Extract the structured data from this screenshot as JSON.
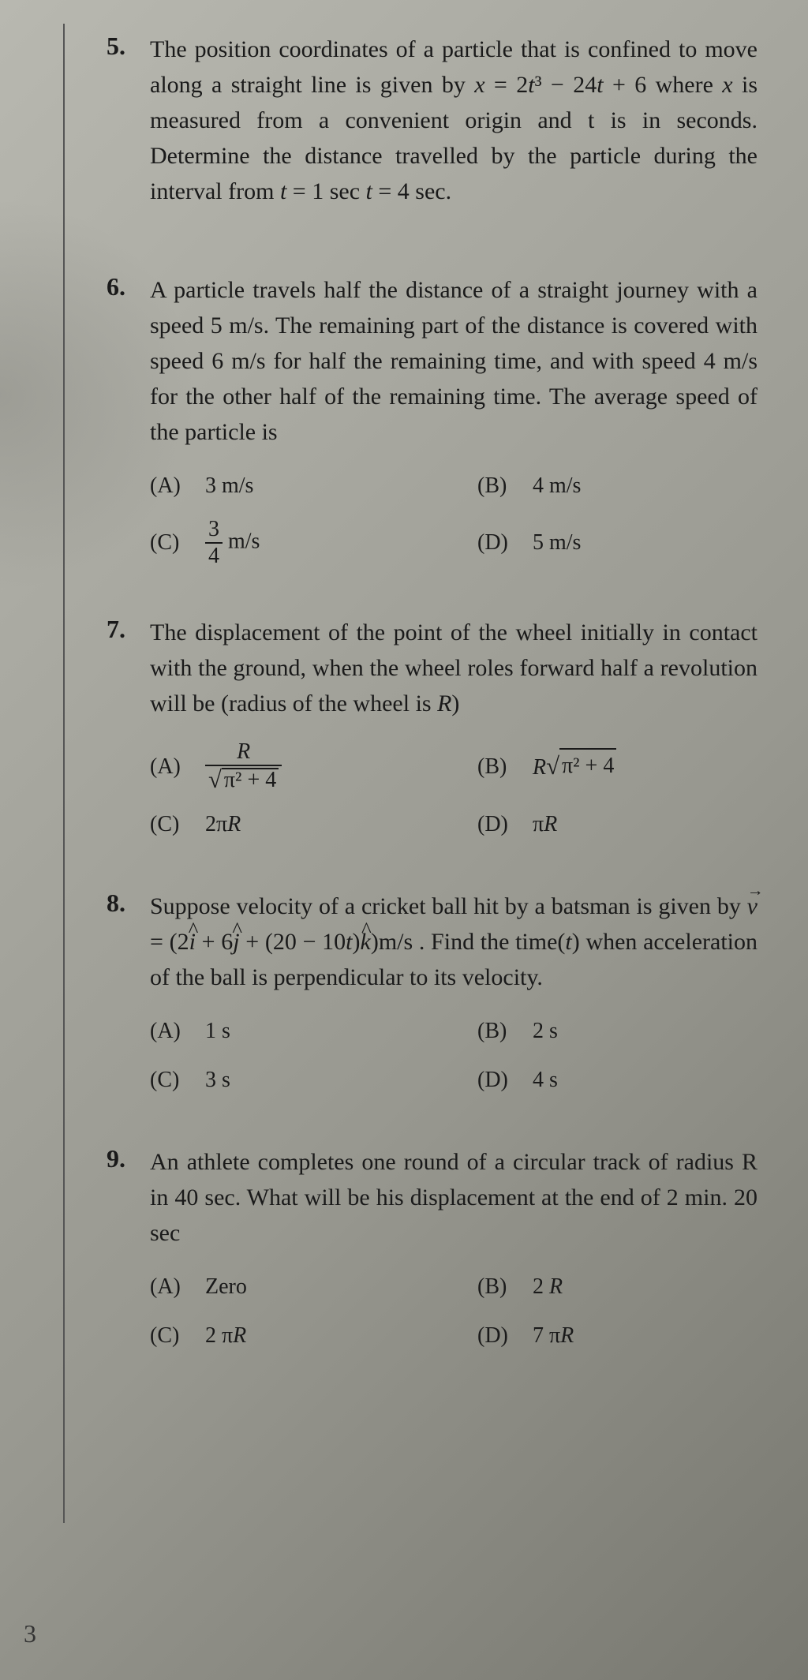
{
  "page_number": "3",
  "q5": {
    "number": "5.",
    "text": "The position coordinates of a particle that is confined to move along a straight line is given by <span class='italic'>x</span> = 2<span class='italic'>t</span>³ − 24<span class='italic'>t</span> + 6 where <span class='italic'>x</span> is measured from a convenient origin and t is in seconds. Determine the distance travelled by the particle during the interval from <span class='italic'>t</span> = 1 sec <span class='italic'>t</span> = 4 sec."
  },
  "q6": {
    "number": "6.",
    "text": "A particle travels half the distance of a straight journey with a speed 5 m/s. The remaining part of the distance is covered with speed 6 m/s for half the remaining time, and with speed 4 m/s for the other half of the remaining time. The average speed of the particle is",
    "options": {
      "a_label": "(A)",
      "a_value": "3 m/s",
      "b_label": "(B)",
      "b_value": "4 m/s",
      "c_label": "(C)",
      "c_value_html": "<span class='frac'><span class='num'>3</span><span class='den'>4</span></span> m/s",
      "d_label": "(D)",
      "d_value": "5 m/s"
    }
  },
  "q7": {
    "number": "7.",
    "text": "The displacement of the point of the wheel initially in contact with the ground, when the wheel roles forward half a revolution will be (radius of the wheel is <span class='italic'>R</span>)",
    "options": {
      "a_label": "(A)",
      "a_value_html": "<span class='frac'><span class='num'><span class='italic'>R</span></span><span class='den'><span class='sqrt'><span class='sqrt-sign'>√</span><span class='sqrt-content'>π² + 4</span></span></span></span>",
      "b_label": "(B)",
      "b_value_html": "<span class='italic'>R</span><span class='sqrt'><span class='sqrt-sign'>√</span><span class='sqrt-content'>π² + 4</span></span>",
      "c_label": "(C)",
      "c_value_html": "2π<span class='italic'>R</span>",
      "d_label": "(D)",
      "d_value_html": "π<span class='italic'>R</span>"
    }
  },
  "q8": {
    "number": "8.",
    "text": "Suppose velocity of a cricket ball hit by a batsman is given by <span class='vec italic'>v</span> = (2<span class='hat italic'>i</span> + 6<span class='hat italic'>j</span> + (20 − 10<span class='italic'>t</span>)<span class='hat italic'>k</span>)m/s . Find the time(<span class='italic'>t</span>) when acceleration of the ball is perpendicular to its velocity.",
    "options": {
      "a_label": "(A)",
      "a_value": "1 s",
      "b_label": "(B)",
      "b_value": "2 s",
      "c_label": "(C)",
      "c_value": "3 s",
      "d_label": "(D)",
      "d_value": "4 s"
    }
  },
  "q9": {
    "number": "9.",
    "text": "An athlete completes one round of a circular track of radius R in 40 sec. What will be his displacement at the end of 2 min. 20 sec",
    "options": {
      "a_label": "(A)",
      "a_value": "Zero",
      "b_label": "(B)",
      "b_value_html": "2 <span class='italic'>R</span>",
      "c_label": "(C)",
      "c_value_html": "2 π<span class='italic'>R</span>",
      "d_label": "(D)",
      "d_value_html": "7 π<span class='italic'>R</span>"
    }
  }
}
